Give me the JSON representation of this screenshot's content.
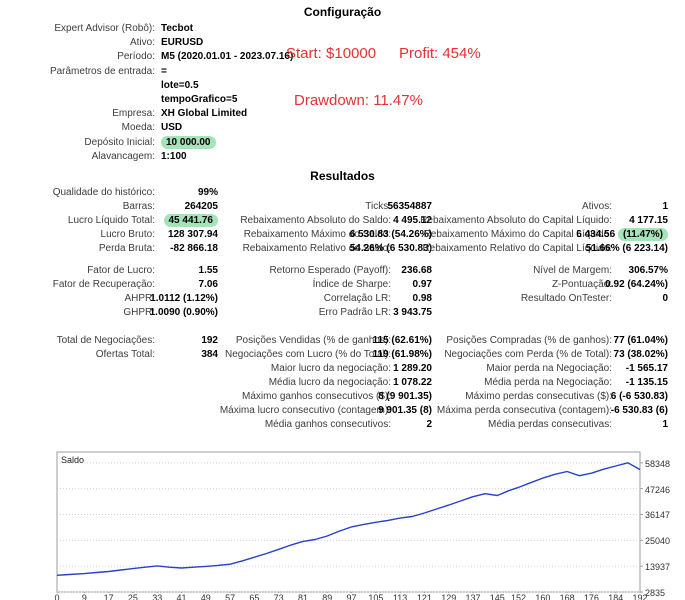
{
  "colors": {
    "annotation_red": "#e23333",
    "highlight_green": "rgba(87,206,125,0.55)",
    "chart_line": "#2741c9"
  },
  "config": {
    "title": "Configuração",
    "rows": [
      {
        "label": "Expert Advisor (Robô):",
        "value": "Tecbot"
      },
      {
        "label": "Ativo:",
        "value": "EURUSD"
      },
      {
        "label": "Período:",
        "value": "M5 (2020.01.01 - 2023.07.16)"
      },
      {
        "label": "Parâmetros de entrada:",
        "value": "="
      },
      {
        "label": "",
        "value": "lote=0.5"
      },
      {
        "label": "",
        "value": "tempoGrafico=5"
      },
      {
        "label": "Empresa:",
        "value": "XH Global Limited"
      },
      {
        "label": "Moeda:",
        "value": "USD"
      },
      {
        "label": "Depósito Inicial:",
        "value": "10 000.00",
        "hl": true
      },
      {
        "label": "Alavancagem:",
        "value": "1:100"
      }
    ]
  },
  "annotations": {
    "start": "Start: $10000",
    "profit": "Profit: 454%",
    "drawdown": "Drawdown: 11.47%"
  },
  "results": {
    "title": "Resultados",
    "rows": [
      {
        "gap": 0,
        "cols": [
          {
            "l": "Qualidade do histórico:",
            "v": "99%"
          },
          {},
          {}
        ]
      },
      {
        "gap": 0,
        "cols": [
          {
            "l": "Barras:",
            "v": "264205"
          },
          {
            "l": "Ticks:",
            "v": "56354887"
          },
          {
            "l": "Ativos:",
            "v": "1"
          }
        ]
      },
      {
        "gap": 0,
        "cols": [
          {
            "l": "Lucro Líquido Total:",
            "v": "45 441.76",
            "hl": true
          },
          {
            "l": "Rebaixamento Absoluto do Saldo:",
            "v": "4 495.12"
          },
          {
            "l": "Rebaixamento Absoluto do Capital Líquido:",
            "v": "4 177.15"
          }
        ]
      },
      {
        "gap": 0,
        "cols": [
          {
            "l": "Lucro Bruto:",
            "v": "128 307.94"
          },
          {
            "l": "Rebaixamento Máximo do Saldo:",
            "v": "6 530.83 (54.26%)"
          },
          {
            "l": "Rebaixamento Máximo do Capital Líquido:",
            "v": "6 434.56 ",
            "vh": "(11.47%)"
          }
        ]
      },
      {
        "gap": 0,
        "cols": [
          {
            "l": "Perda Bruta:",
            "v": "-82 866.18"
          },
          {
            "l": "Rebaixamento Relativo do Saldo:",
            "v": "54.26% (6 530.83)"
          },
          {
            "l": "Rebaixamento Relativo do Capital Líquido:",
            "v": "51.66% (6 223.14)"
          }
        ]
      },
      {
        "gap": 8,
        "cols": [
          {
            "l": "Fator de Lucro:",
            "v": "1.55"
          },
          {
            "l": "Retorno Esperado (Payoff):",
            "v": "236.68"
          },
          {
            "l": "Nível de Margem:",
            "v": "306.57%"
          }
        ]
      },
      {
        "gap": 0,
        "cols": [
          {
            "l": "Fator de Recuperação:",
            "v": "7.06"
          },
          {
            "l": "Índice de Sharpe:",
            "v": "0.97"
          },
          {
            "l": "Z-Pontuação:",
            "v": "0.92 (64.24%)"
          }
        ]
      },
      {
        "gap": 0,
        "cols": [
          {
            "l": "AHPR:",
            "v": "1.0112 (1.12%)"
          },
          {
            "l": "Correlação LR:",
            "v": "0.98"
          },
          {
            "l": "Resultado OnTester:",
            "v": "0"
          }
        ]
      },
      {
        "gap": 0,
        "cols": [
          {
            "l": "GHPR:",
            "v": "1.0090 (0.90%)"
          },
          {
            "l": "Erro Padrão LR:",
            "v": "3 943.75"
          },
          {}
        ]
      },
      {
        "gap": 14,
        "cols": [
          {
            "l": "Total de Negociações:",
            "v": "192"
          },
          {
            "l": "Posições Vendidas (% de ganhos):",
            "v": "115 (62.61%)"
          },
          {
            "l": "Posições Compradas (% de ganhos):",
            "v": "77 (61.04%)"
          }
        ]
      },
      {
        "gap": 0,
        "cols": [
          {
            "l": "Ofertas Total:",
            "v": "384"
          },
          {
            "l": "Negociações com Lucro (% do Total):",
            "v": "119 (61.98%)"
          },
          {
            "l": "Negociações com Perda (% de Total):",
            "v": "73 (38.02%)"
          }
        ]
      },
      {
        "gap": 0,
        "cols": [
          {},
          {
            "l": "Maior lucro da negociação:",
            "v": "1 289.20"
          },
          {
            "l": "Maior perda na Negociação:",
            "v": "-1 565.17"
          }
        ]
      },
      {
        "gap": 0,
        "cols": [
          {},
          {
            "l": "Média lucro da negociação:",
            "v": "1 078.22"
          },
          {
            "l": "Média perda na Negociação:",
            "v": "-1 135.15"
          }
        ]
      },
      {
        "gap": 0,
        "cols": [
          {},
          {
            "l": "Máximo ganhos consecutivos ($):",
            "v": "8 (9 901.35)"
          },
          {
            "l": "Máximo perdas consecutivas ($):",
            "v": "6 (-6 530.83)"
          }
        ]
      },
      {
        "gap": 0,
        "cols": [
          {},
          {
            "l": "Máxima lucro consecutivo (contagem):",
            "v": "9 901.35 (8)"
          },
          {
            "l": "Máxima perda consecutiva (contagem):",
            "v": "-6 530.83 (6)"
          }
        ]
      },
      {
        "gap": 0,
        "cols": [
          {},
          {
            "l": "Média ganhos consecutivos:",
            "v": "2"
          },
          {
            "l": "Média perdas consecutivas:",
            "v": "1"
          }
        ]
      }
    ]
  },
  "chart_data": {
    "type": "line",
    "title": "Saldo",
    "xlabel": "",
    "ylabel": "",
    "legend": false,
    "grid": true,
    "xlim": [
      0,
      192
    ],
    "ylim": [
      2835,
      63000
    ],
    "x_ticks": [
      0,
      9,
      17,
      25,
      33,
      41,
      49,
      57,
      65,
      73,
      81,
      89,
      97,
      105,
      113,
      121,
      129,
      137,
      145,
      152,
      160,
      168,
      176,
      184,
      192
    ],
    "y_ticks": [
      58348,
      47246,
      36147,
      25040,
      13937,
      2835
    ],
    "series": [
      {
        "name": "Saldo",
        "x": [
          0,
          4,
          9,
          13,
          17,
          21,
          25,
          29,
          33,
          37,
          41,
          45,
          49,
          53,
          57,
          61,
          65,
          69,
          73,
          77,
          81,
          85,
          89,
          93,
          97,
          101,
          105,
          109,
          113,
          117,
          121,
          125,
          129,
          133,
          137,
          141,
          145,
          149,
          152,
          156,
          160,
          164,
          168,
          172,
          176,
          180,
          184,
          188,
          192
        ],
        "y": [
          10000,
          10350,
          10750,
          11200,
          11650,
          12300,
          12900,
          13500,
          14050,
          13500,
          13150,
          13500,
          13850,
          14250,
          14800,
          16200,
          17800,
          19400,
          21200,
          23000,
          24600,
          25400,
          26900,
          29000,
          30800,
          31900,
          32800,
          33600,
          34600,
          35300,
          36800,
          38500,
          40200,
          42000,
          43800,
          45100,
          44300,
          46500,
          47800,
          49800,
          51800,
          53400,
          54600,
          52800,
          53900,
          55600,
          57000,
          58348,
          55442
        ]
      }
    ]
  }
}
